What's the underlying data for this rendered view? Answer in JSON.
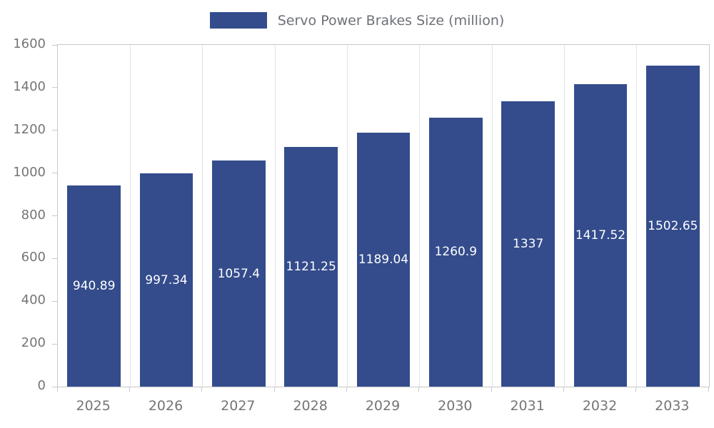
{
  "legend": {
    "label": "Servo Power Brakes Size (million)"
  },
  "chart_data": {
    "type": "bar",
    "title": "Servo Power Brakes Size (million)",
    "categories": [
      "2025",
      "2026",
      "2027",
      "2028",
      "2029",
      "2030",
      "2031",
      "2032",
      "2033"
    ],
    "values": [
      940.89,
      997.34,
      1057.4,
      1121.25,
      1189.04,
      1260.9,
      1337,
      1417.52,
      1502.65
    ],
    "labels": [
      "940.89",
      "997.34",
      "1057.4",
      "1121.25",
      "1189.04",
      "1260.9",
      "1337",
      "1417.52",
      "1502.65"
    ],
    "xlabel": "",
    "ylabel": "",
    "ylim": [
      0,
      1600
    ],
    "ytick_step": 200,
    "grid": true,
    "grid_orientation": "vertical",
    "legend_position": "top",
    "bar_color": "#344c8c",
    "bar_label_color": "#ffffff",
    "axis_text_color": "#757575",
    "legend_text_color": "#6e7079",
    "axis_line_color": "#c9c9c9",
    "gridline_color": "#e3e3e3"
  }
}
